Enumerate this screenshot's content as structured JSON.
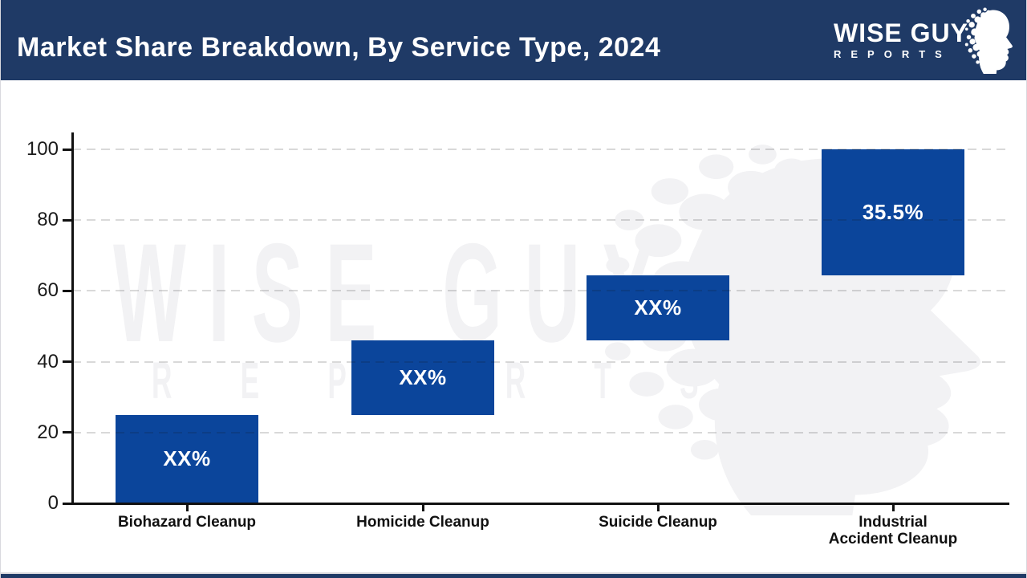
{
  "header": {
    "title": "Market Share Breakdown, By Service Type, 2024",
    "logo": {
      "brand": "WISE GUY",
      "sub": "REPORTS",
      "face_icon": "dotted-head-profile"
    }
  },
  "watermark": {
    "brand": "WISE GUY",
    "sub": "REPORTS",
    "face_icon": "dotted-head-profile"
  },
  "chart_data": {
    "type": "bar",
    "subtype": "floating-waterfall",
    "title": "Market Share Breakdown, By Service Type, 2024",
    "categories": [
      "Biohazard Cleanup",
      "Homicide Cleanup",
      "Suicide Cleanup",
      "Industrial Accident Cleanup"
    ],
    "tick_labels": [
      "Biohazard Cleanup",
      "Homicide Cleanup",
      "Suicide Cleanup",
      "Industrial\nAccident Cleanup"
    ],
    "series": [
      {
        "name": "Market share (%)",
        "segments": [
          {
            "category": "Biohazard Cleanup",
            "start": 0,
            "end": 25,
            "size": 25,
            "label": "XX%"
          },
          {
            "category": "Homicide Cleanup",
            "start": 25,
            "end": 46,
            "size": 21,
            "label": "XX%"
          },
          {
            "category": "Suicide Cleanup",
            "start": 46,
            "end": 64.5,
            "size": 18.5,
            "label": "XX%"
          },
          {
            "category": "Industrial Accident Cleanup",
            "start": 64.5,
            "end": 100,
            "size": 35.5,
            "label": "35.5%"
          }
        ]
      }
    ],
    "xlabel": "",
    "ylabel": "",
    "ylim": [
      0,
      100
    ],
    "yticks": [
      0,
      20,
      40,
      60,
      80,
      100
    ],
    "grid": "horizontal-dashed",
    "legend": "none",
    "bar_color": "#0B459B",
    "bar_label_color": "#ffffff"
  },
  "colors": {
    "header_bg": "#1F3A66",
    "footer_bg": "#1F3A66",
    "bar": "#0B459B",
    "watermark": "#F2F2F4",
    "axis": "#111111",
    "gridline": "#D8D8D8"
  }
}
